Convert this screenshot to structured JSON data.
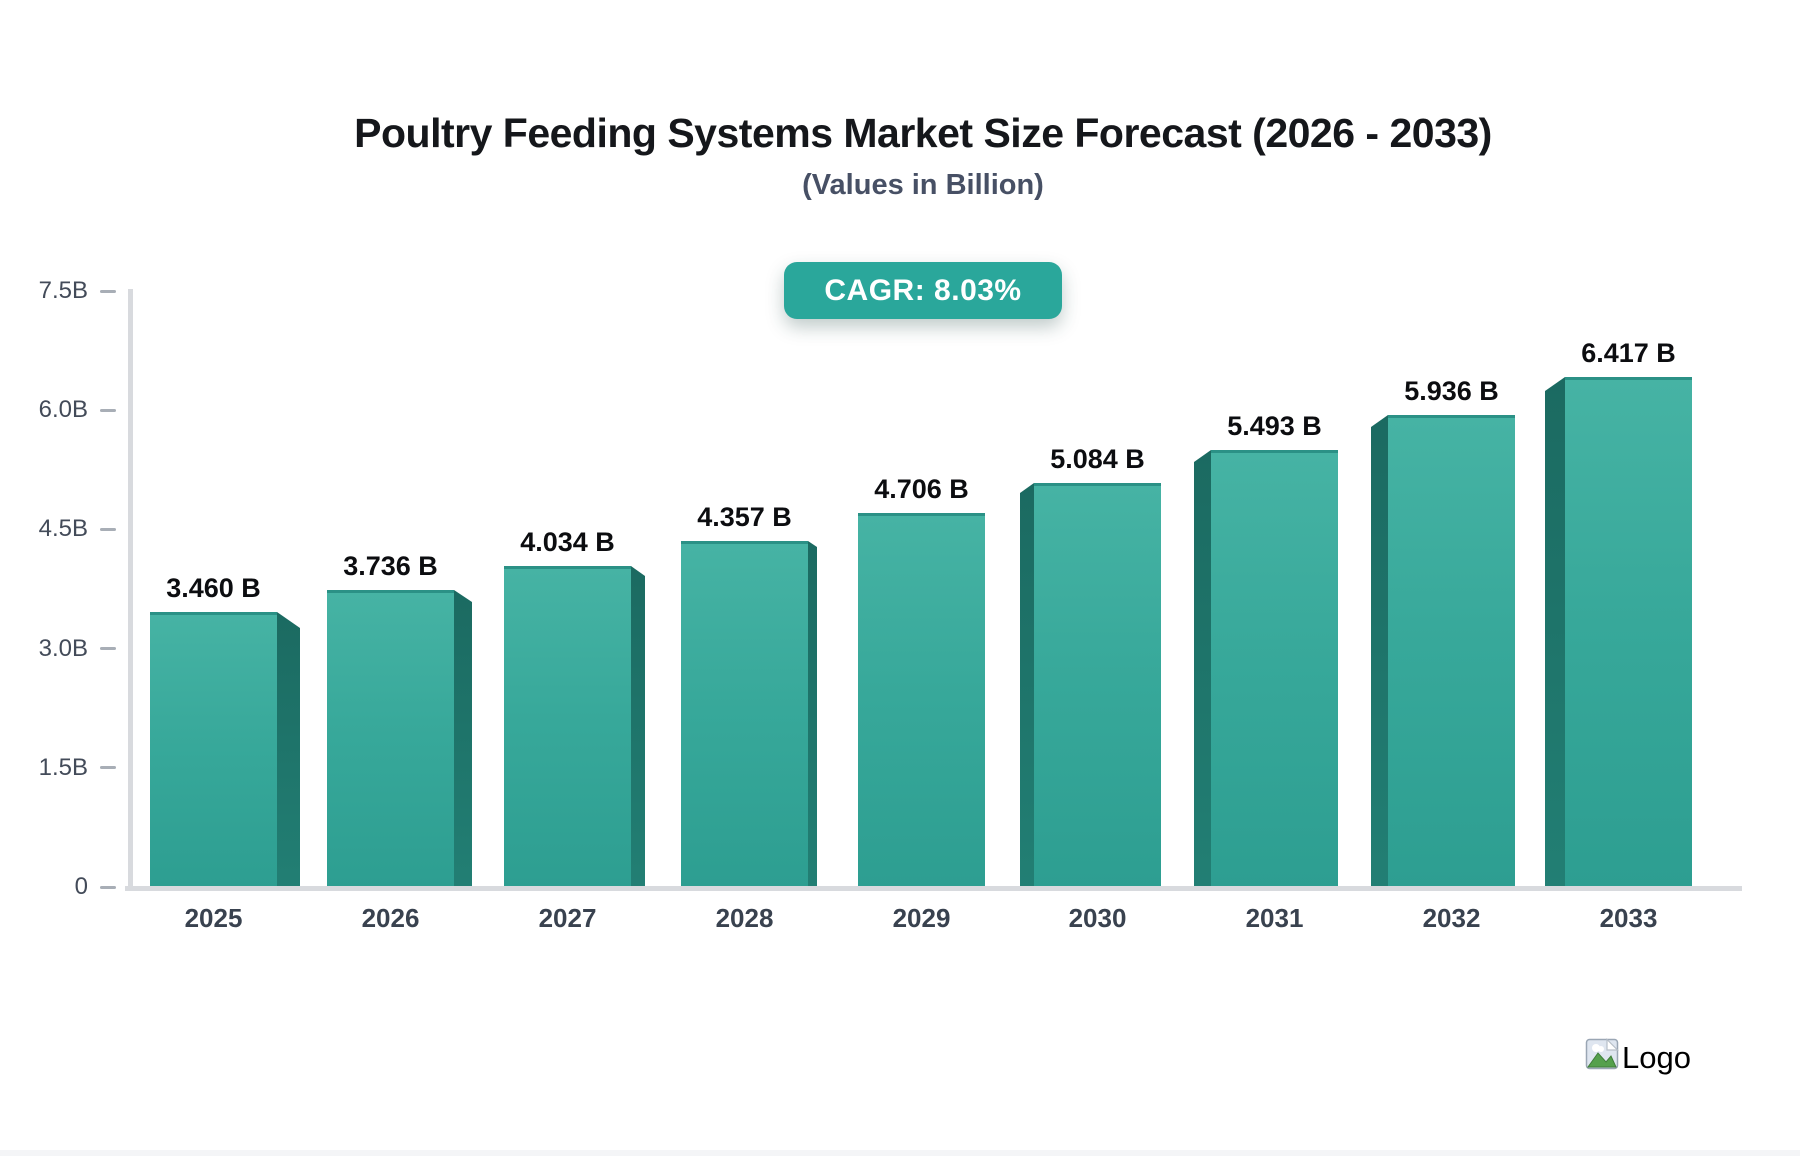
{
  "header": {
    "title": "Poultry Feeding Systems Market Size Forecast (2026 - 2033)",
    "subtitle": "(Values in Billion)"
  },
  "badge": {
    "label": "CAGR: 8.03%",
    "bg_color": "#2aa79b",
    "text_color": "#ffffff"
  },
  "chart_data": {
    "type": "bar",
    "title": "Poultry Feeding Systems Market Size Forecast (2026 - 2033)",
    "subtitle": "(Values in Billion)",
    "categories": [
      "2025",
      "2026",
      "2027",
      "2028",
      "2029",
      "2030",
      "2031",
      "2032",
      "2033"
    ],
    "values": [
      3.46,
      3.736,
      4.034,
      4.357,
      4.706,
      5.084,
      5.493,
      5.936,
      6.417
    ],
    "value_labels": [
      "3.460 B",
      "3.736 B",
      "4.034 B",
      "4.357 B",
      "4.706 B",
      "5.084 B",
      "5.493 B",
      "5.936 B",
      "6.417 B"
    ],
    "xlabel": "",
    "ylabel": "",
    "ylim": [
      0,
      7.5
    ],
    "yticks": [
      0,
      1.5,
      3,
      4.5,
      6,
      7.5
    ],
    "ytick_labels": [
      "0",
      "1.5B",
      "3.0B",
      "4.5B",
      "6.0B",
      "7.5B"
    ],
    "grid": false,
    "legend": false,
    "style_3d": true,
    "bar_face_color_top": "#46b3a4",
    "bar_face_color_bottom": "#2d9e91",
    "bar_top_edge_color": "#2b9186",
    "bar_side_color": "#1f7b70",
    "axis_color": "#d8dade",
    "tick_color": "#a8aeb6"
  },
  "footer": {
    "logo_text": "Logo",
    "logo_icon": "broken-image-icon"
  }
}
